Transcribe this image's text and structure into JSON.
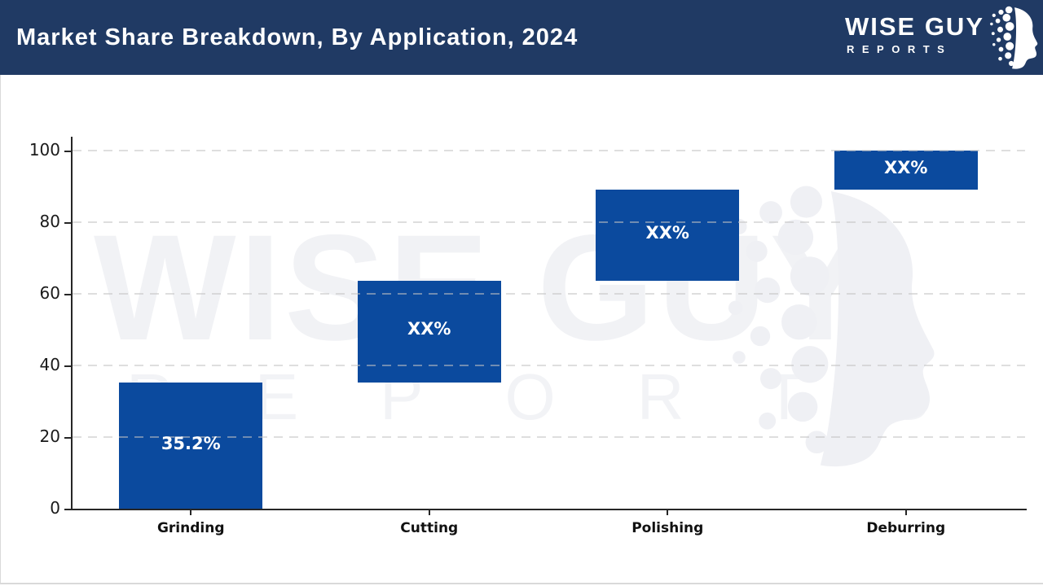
{
  "header": {
    "title": "Market Share Breakdown, By Application, 2024",
    "bg_color": "#203a64",
    "logo": {
      "line1": "WISE GUY",
      "line2": "REPORTS"
    }
  },
  "watermark": {
    "line1": "WISE GUY",
    "line2": "REPORTS"
  },
  "chart_data": {
    "type": "bar",
    "subtype": "waterfall",
    "title": "Market Share Breakdown, By Application, 2024",
    "categories": [
      "Grinding",
      "Cutting",
      "Polishing",
      "Deburring"
    ],
    "series": [
      {
        "name": "Market Share",
        "segments": [
          {
            "start": 0,
            "end": 35.2
          },
          {
            "start": 35.2,
            "end": 63.7
          },
          {
            "start": 63.7,
            "end": 89.0
          },
          {
            "start": 89.0,
            "end": 100.0
          }
        ]
      }
    ],
    "bar_labels": [
      "35.2%",
      "XX%",
      "XX%",
      "XX%"
    ],
    "xlabel": "",
    "ylabel": "",
    "ylim": [
      0,
      100
    ],
    "yticks": [
      0,
      20,
      40,
      60,
      80,
      100
    ],
    "grid": "horizontal-dashed-over-bars",
    "bar_color": "#0b4a9e",
    "axis_color": "#262626",
    "grid_color": "rgba(195,195,195,0.55)",
    "label_color": "#ffffff",
    "tick_color": "#1a1a1a"
  }
}
